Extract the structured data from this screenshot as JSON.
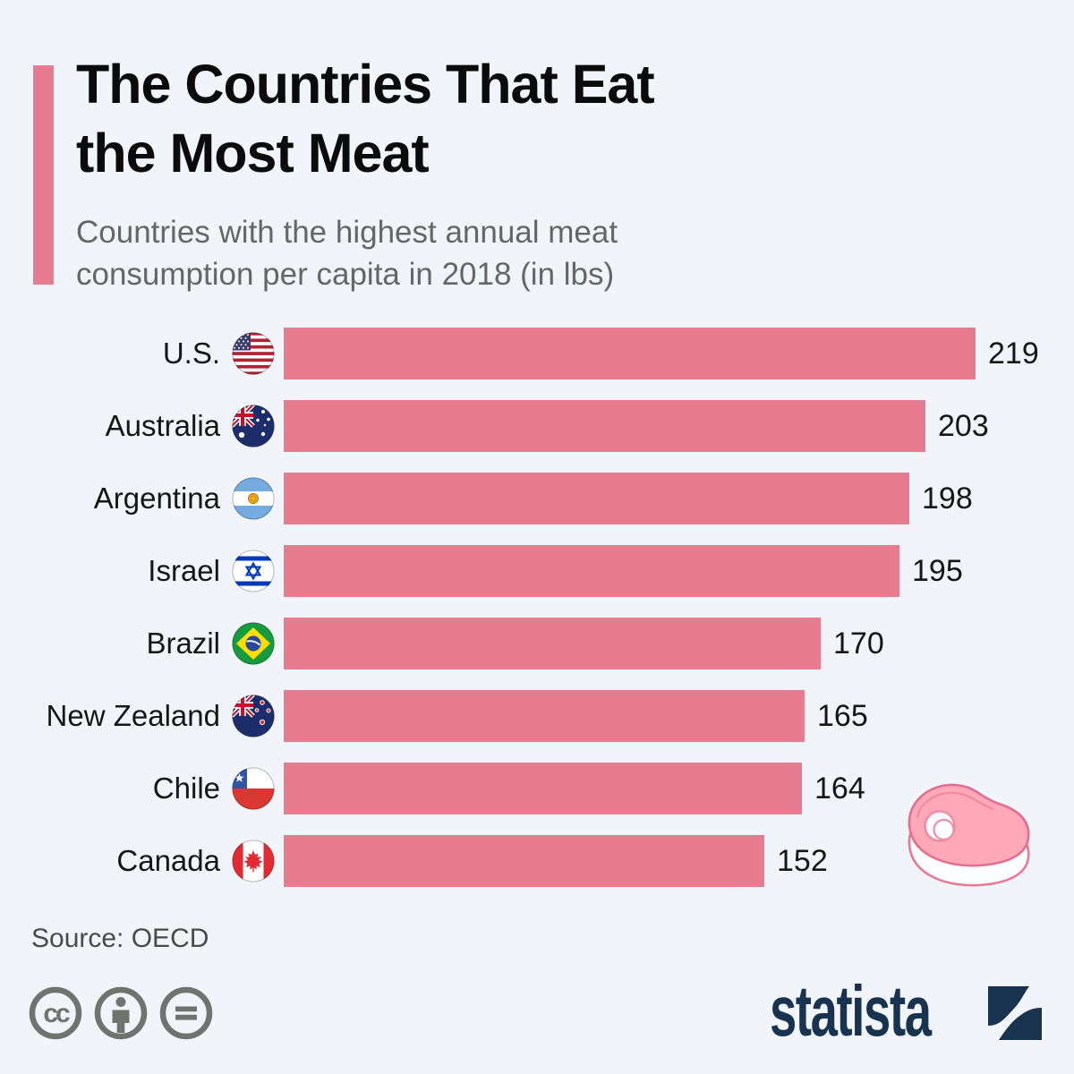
{
  "header": {
    "title": "The Countries That Eat the Most Meat",
    "title_line1": "The Countries That Eat",
    "title_line2": "the Most Meat",
    "subtitle": "Countries with the highest annual meat consumption per capita in 2018 (in lbs)"
  },
  "chart_data": {
    "type": "bar",
    "orientation": "horizontal",
    "title": "The Countries That Eat the Most Meat",
    "subtitle": "Countries with the highest annual meat consumption per capita in 2018 (in lbs)",
    "unit": "lbs per capita per year",
    "year": "2018",
    "categories": [
      "U.S.",
      "Australia",
      "Argentina",
      "Israel",
      "Brazil",
      "New Zealand",
      "Chile",
      "Canada"
    ],
    "values": [
      219,
      203,
      198,
      195,
      170,
      165,
      164,
      152
    ],
    "flag_icons": [
      "us-flag-icon",
      "australia-flag-icon",
      "argentina-flag-icon",
      "israel-flag-icon",
      "brazil-flag-icon",
      "new-zealand-flag-icon",
      "chile-flag-icon",
      "canada-flag-icon"
    ],
    "xlim": [
      0,
      219
    ],
    "grid": false,
    "legend": "none",
    "value_labels": "end-of-bar",
    "bar_color": "#e77b90"
  },
  "footer": {
    "source": "Source: OECD",
    "license_icons": [
      "creative-commons-icon",
      "attribution-icon",
      "no-derivatives-icon"
    ],
    "brand": "statista"
  },
  "colors": {
    "background": "#f1f4f9",
    "bar": "#e77b90",
    "accent_bar": "#e77b90",
    "title_text": "#0b0b0b",
    "subtitle_text": "#666666",
    "brand_navy": "#17334f",
    "license_gray": "#6f746f",
    "steak_fill": "#ffa9b8",
    "steak_outline": "#e56e8e"
  }
}
